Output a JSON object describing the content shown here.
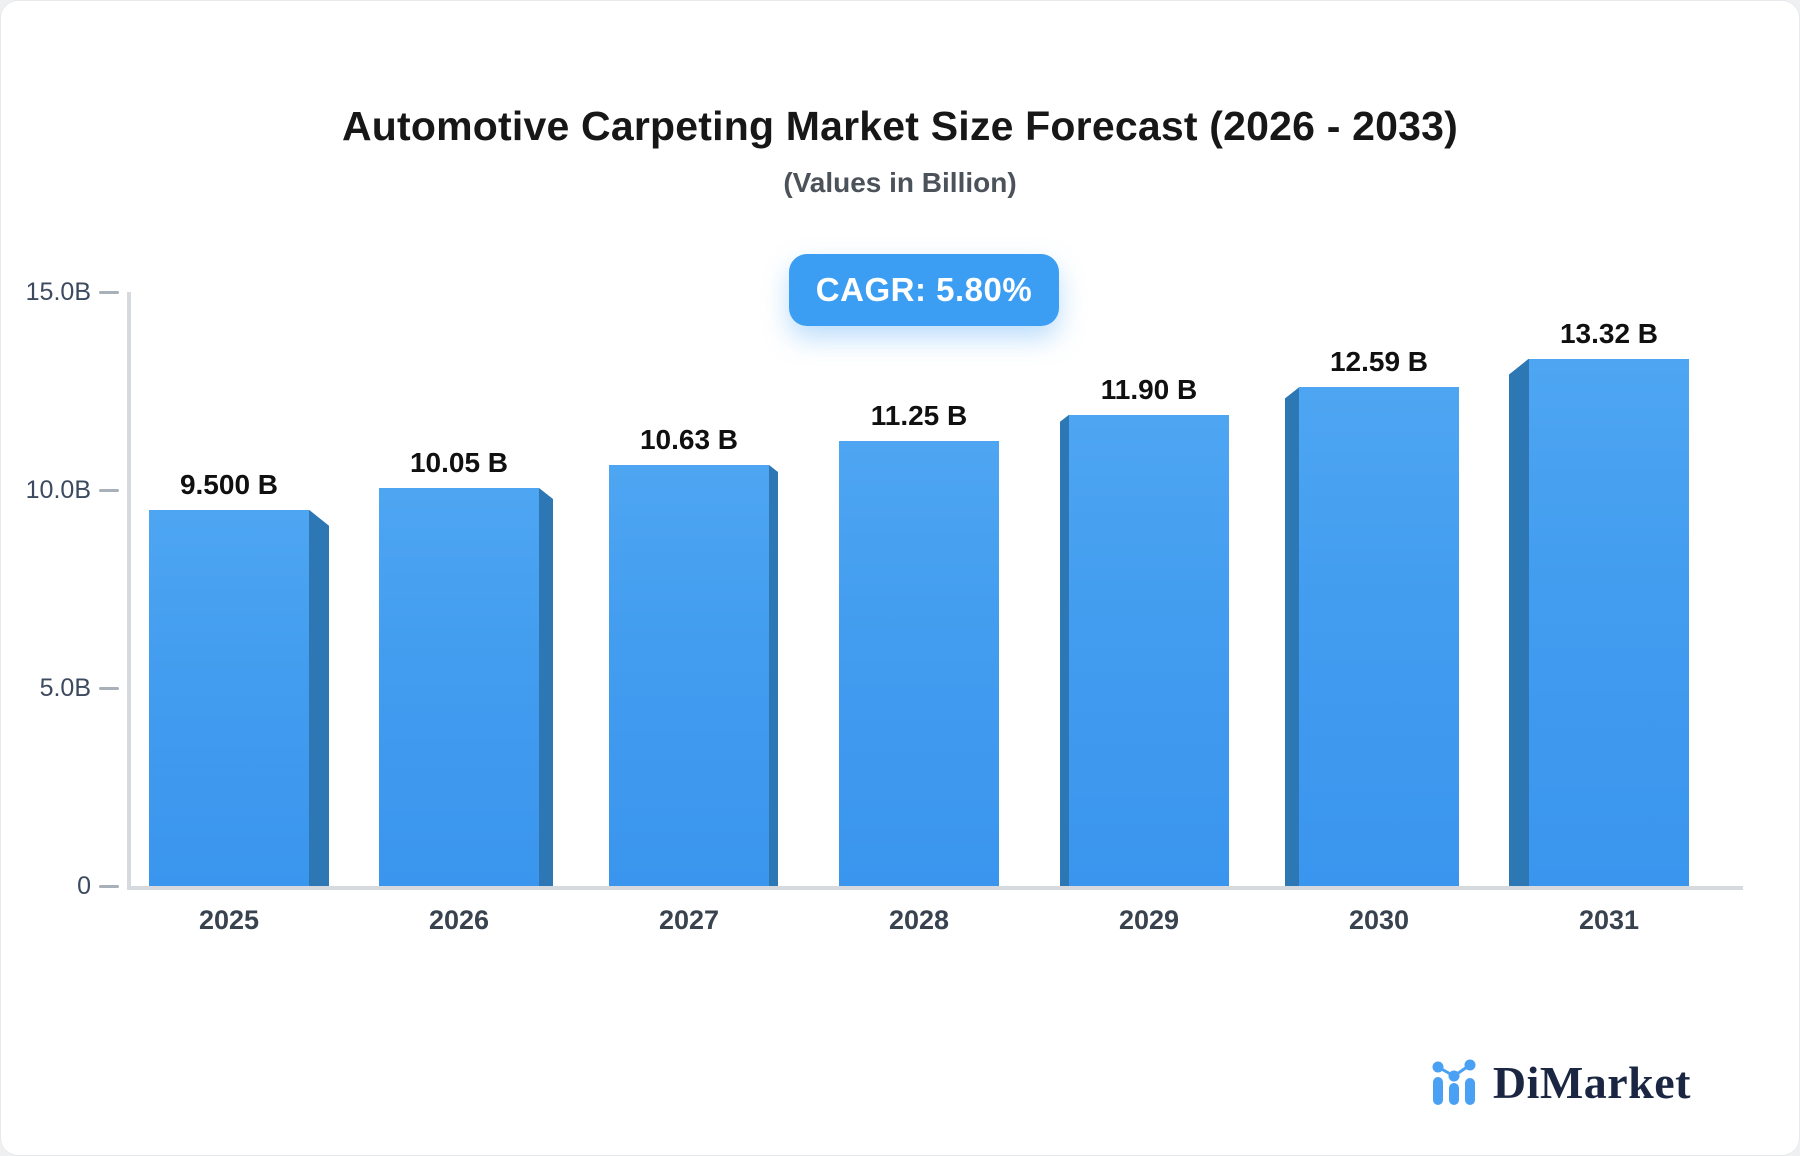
{
  "header": {
    "title": "Automotive Carpeting Market Size Forecast (2026 - 2033)",
    "subtitle": "(Values in Billion)",
    "cagr_badge_label": "CAGR: 5.80%"
  },
  "brand": {
    "name": "DiMarket",
    "icon": "bar-chart-logo-icon"
  },
  "colors": {
    "bar_face_top": "#4ea6f2",
    "bar_face_bottom": "#3a95ee",
    "bar_side": "#2e77b5",
    "badge_bg": "#3b9ef3",
    "badge_text": "#ffffff",
    "axis_line": "#d6d9dd",
    "tick_mark": "#a8b0ba",
    "axis_label": "#3c4a5f",
    "value_label": "#101010",
    "brand_navy": "#1b2742",
    "brand_blue": "#4aa0f2"
  },
  "chart_data": {
    "type": "bar",
    "title": "Automotive Carpeting Market Size Forecast (2026 - 2033)",
    "subtitle": "(Values in Billion)",
    "categories": [
      "2025",
      "2026",
      "2027",
      "2028",
      "2029",
      "2030",
      "2031"
    ],
    "values": [
      9.5,
      10.05,
      10.63,
      11.25,
      11.9,
      12.59,
      13.32
    ],
    "value_labels": [
      "9.500 B",
      "10.05 B",
      "10.63 B",
      "11.25 B",
      "11.90 B",
      "12.59 B",
      "13.32 B"
    ],
    "xlabel": "",
    "ylabel": "",
    "ylim": [
      0,
      15
    ],
    "yticks": [
      {
        "label": "15.0B",
        "value": 15
      },
      {
        "label": "10.0B",
        "value": 10
      },
      {
        "label": "5.0B",
        "value": 5
      },
      {
        "label": "0",
        "value": 0
      }
    ],
    "grid": false,
    "legend": false,
    "style": "3d-perspective-bars"
  }
}
